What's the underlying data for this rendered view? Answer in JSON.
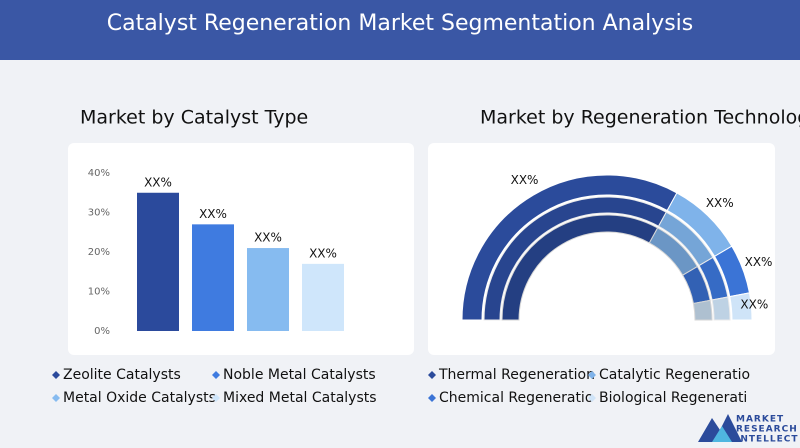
{
  "title": "Catalyst Regeneration Market Segmentation Analysis",
  "chart_data": [
    {
      "type": "bar",
      "title": "Market by Catalyst Type",
      "categories": [
        "Zeolite Catalysts",
        "Noble Metal Catalysts",
        "Metal Oxide Catalysts",
        "Mixed Metal Catalysts"
      ],
      "values": [
        35,
        27,
        21,
        17
      ],
      "value_labels": [
        "XX%",
        "XX%",
        "XX%",
        "XX%"
      ],
      "colors": [
        "#2b4a9c",
        "#3f7be0",
        "#86bbf0",
        "#cfe6fb"
      ],
      "ylim": [
        0,
        40
      ],
      "yticks": [
        {
          "value": 0,
          "label": "0%"
        },
        {
          "value": 10,
          "label": "10%"
        },
        {
          "value": 20,
          "label": "20%"
        },
        {
          "value": 30,
          "label": "30%"
        },
        {
          "value": 40,
          "label": "40%"
        }
      ]
    },
    {
      "type": "semi-donut",
      "title": "Market by Regeneration Technology",
      "categories": [
        "Thermal Regeneration",
        "Catalytic Regeneratio",
        "Chemical Regeneratio",
        "Biological Regenerati"
      ],
      "values": [
        66,
        17,
        11,
        6
      ],
      "value_labels": [
        "XX%",
        "XX%",
        "XX%",
        "XX%"
      ],
      "colors": [
        "#2b4b9b",
        "#7fb3ea",
        "#3b74d6",
        "#cfe4f8"
      ]
    }
  ],
  "logo": {
    "lines": [
      "MARKET",
      "RESEARCH",
      "INTELLECT"
    ]
  }
}
